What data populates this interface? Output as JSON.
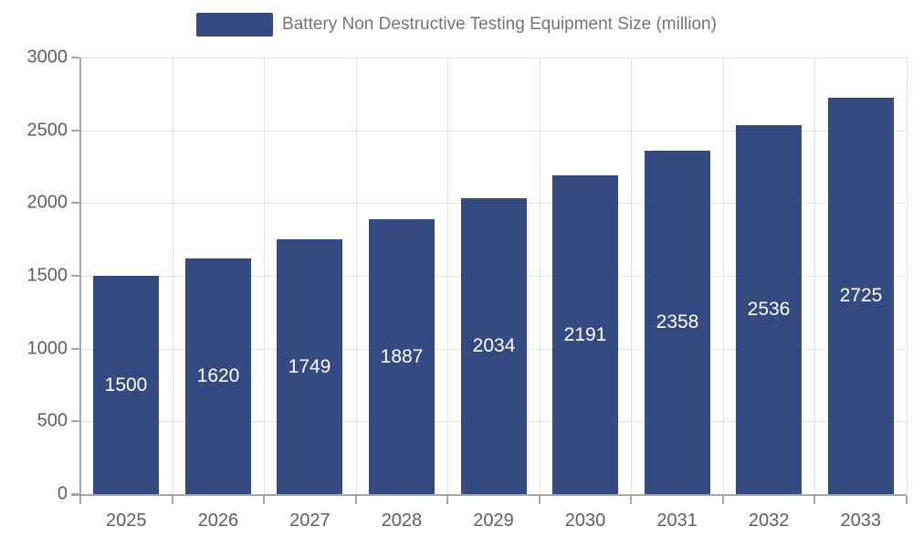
{
  "legend": {
    "label": "Battery Non Destructive Testing Equipment Size (million)"
  },
  "colors": {
    "bar": "#364a82",
    "legend_text": "#757579",
    "axis_text": "#5f5f5f",
    "grid": "#e2e2e2",
    "axis_line": "#a6a6a6",
    "value_label": "#ffffff"
  },
  "chart_data": {
    "type": "bar",
    "categories": [
      "2025",
      "2026",
      "2027",
      "2028",
      "2029",
      "2030",
      "2031",
      "2032",
      "2033"
    ],
    "values": [
      1500,
      1620,
      1749,
      1887,
      2034,
      2191,
      2358,
      2536,
      2725
    ],
    "title": "Battery Non Destructive Testing Equipment Size (million)",
    "xlabel": "",
    "ylabel": "",
    "ylim": [
      0,
      3000
    ],
    "ytick_step": 500,
    "yticks": [
      0,
      500,
      1000,
      1500,
      2000,
      2500,
      3000
    ],
    "grid": true,
    "legend_position": "top",
    "value_label_position": "inside-center",
    "bar_width_fraction": 0.72
  }
}
